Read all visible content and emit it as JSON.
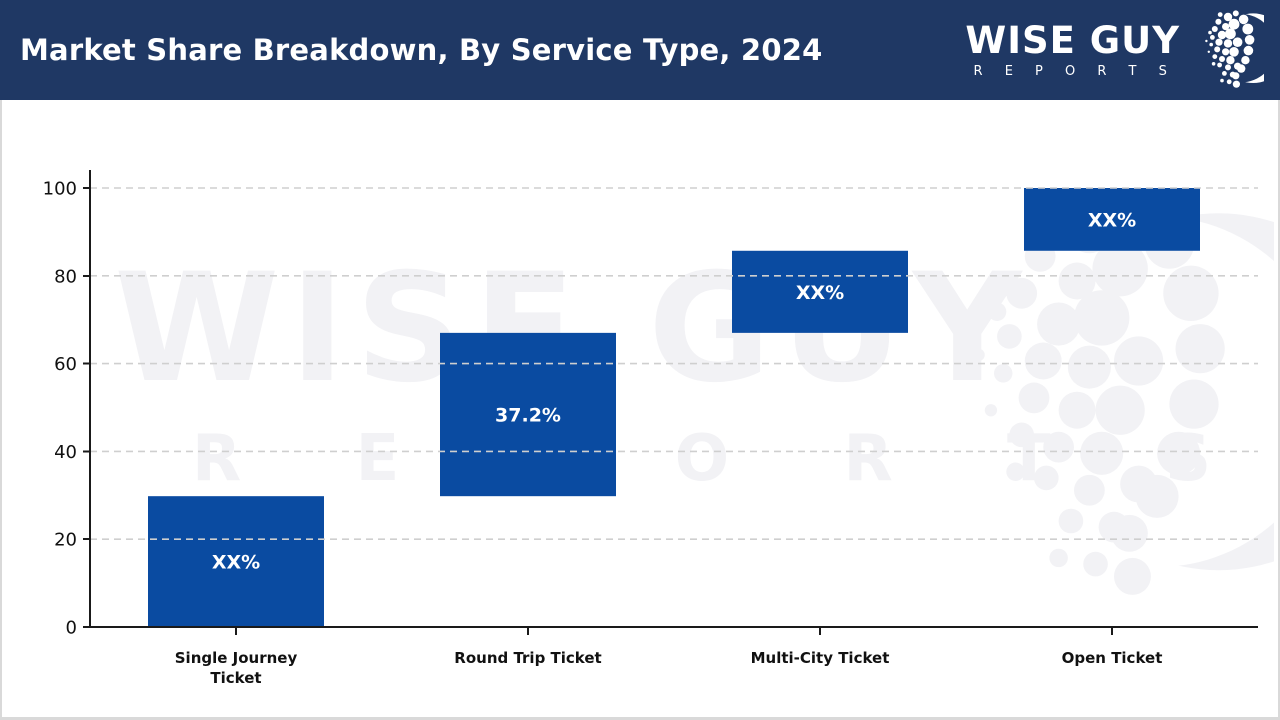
{
  "header": {
    "title": "Market Share Breakdown, By Service Type, 2024",
    "logo": {
      "line1": "WISE GUY",
      "line2": "R E P O R T S"
    }
  },
  "watermark": {
    "line1": "WISE GUY",
    "line2": "R E P O R T S"
  },
  "theme": {
    "header_bg": "#1f3864",
    "bar_color": "#0a4ba1",
    "grid_color": "#cfcfcf",
    "axis_color": "#1a1a1a",
    "tick_label_color": "#111111",
    "bar_label_color": "#ffffff",
    "watermark_color": "#f2f2f5",
    "frame_border_color": "#d9d9d9",
    "background": "#ffffff"
  },
  "chart_data": {
    "type": "bar",
    "subtype": "floating-waterfall",
    "title": "Market Share Breakdown, By Service Type, 2024",
    "categories": [
      "Single Journey Ticket",
      "Round Trip Ticket",
      "Multi-City Ticket",
      "Open Ticket"
    ],
    "category_label_lines": [
      [
        "Single Journey",
        "Ticket"
      ],
      [
        "Round Trip Ticket"
      ],
      [
        "Multi-City Ticket"
      ],
      [
        "Open Ticket"
      ]
    ],
    "segments": [
      {
        "category": "Single Journey Ticket",
        "start": 0,
        "end": 29.8,
        "label": "XX%"
      },
      {
        "category": "Round Trip Ticket",
        "start": 29.8,
        "end": 67.0,
        "label": "37.2%",
        "value": 37.2
      },
      {
        "category": "Multi-City Ticket",
        "start": 67.0,
        "end": 85.7,
        "label": "XX%"
      },
      {
        "category": "Open Ticket",
        "start": 85.7,
        "end": 100,
        "label": "XX%"
      }
    ],
    "ylim": [
      0,
      100
    ],
    "yticks": [
      0,
      20,
      40,
      60,
      80,
      100
    ],
    "xlabel": "",
    "ylabel": "",
    "grid": "dashed-horizontal-over-bars",
    "legend": null
  }
}
